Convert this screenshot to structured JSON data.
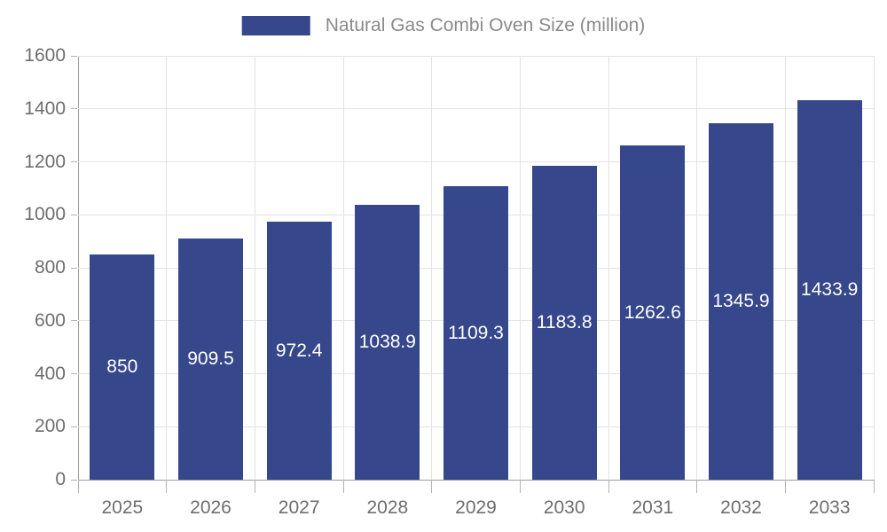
{
  "chart_data": {
    "type": "bar",
    "title": "",
    "categories": [
      "2025",
      "2026",
      "2027",
      "2028",
      "2029",
      "2030",
      "2031",
      "2032",
      "2033"
    ],
    "series": [
      {
        "name": "Natural Gas Combi Oven Size (million)",
        "values": [
          850,
          909.5,
          972.4,
          1038.9,
          1109.3,
          1183.8,
          1262.6,
          1345.9,
          1433.9
        ],
        "color": "#36478b"
      }
    ],
    "xlabel": "",
    "ylabel": "",
    "ylim": [
      0,
      1600
    ],
    "yticks": [
      0,
      200,
      400,
      600,
      800,
      1000,
      1200,
      1400,
      1600
    ],
    "grid": true,
    "legend_position": "top",
    "data_label_position": "inside-center"
  },
  "colors": {
    "bar": "#36478b",
    "bar_label": "#ffffff",
    "axis_line": "#9e9e9e",
    "tick": "#b3b3b3",
    "gridline": "#e3e3e3",
    "axis_text": "#6e6e6e",
    "legend_text": "#8a8a8a",
    "background": "#ffffff"
  }
}
